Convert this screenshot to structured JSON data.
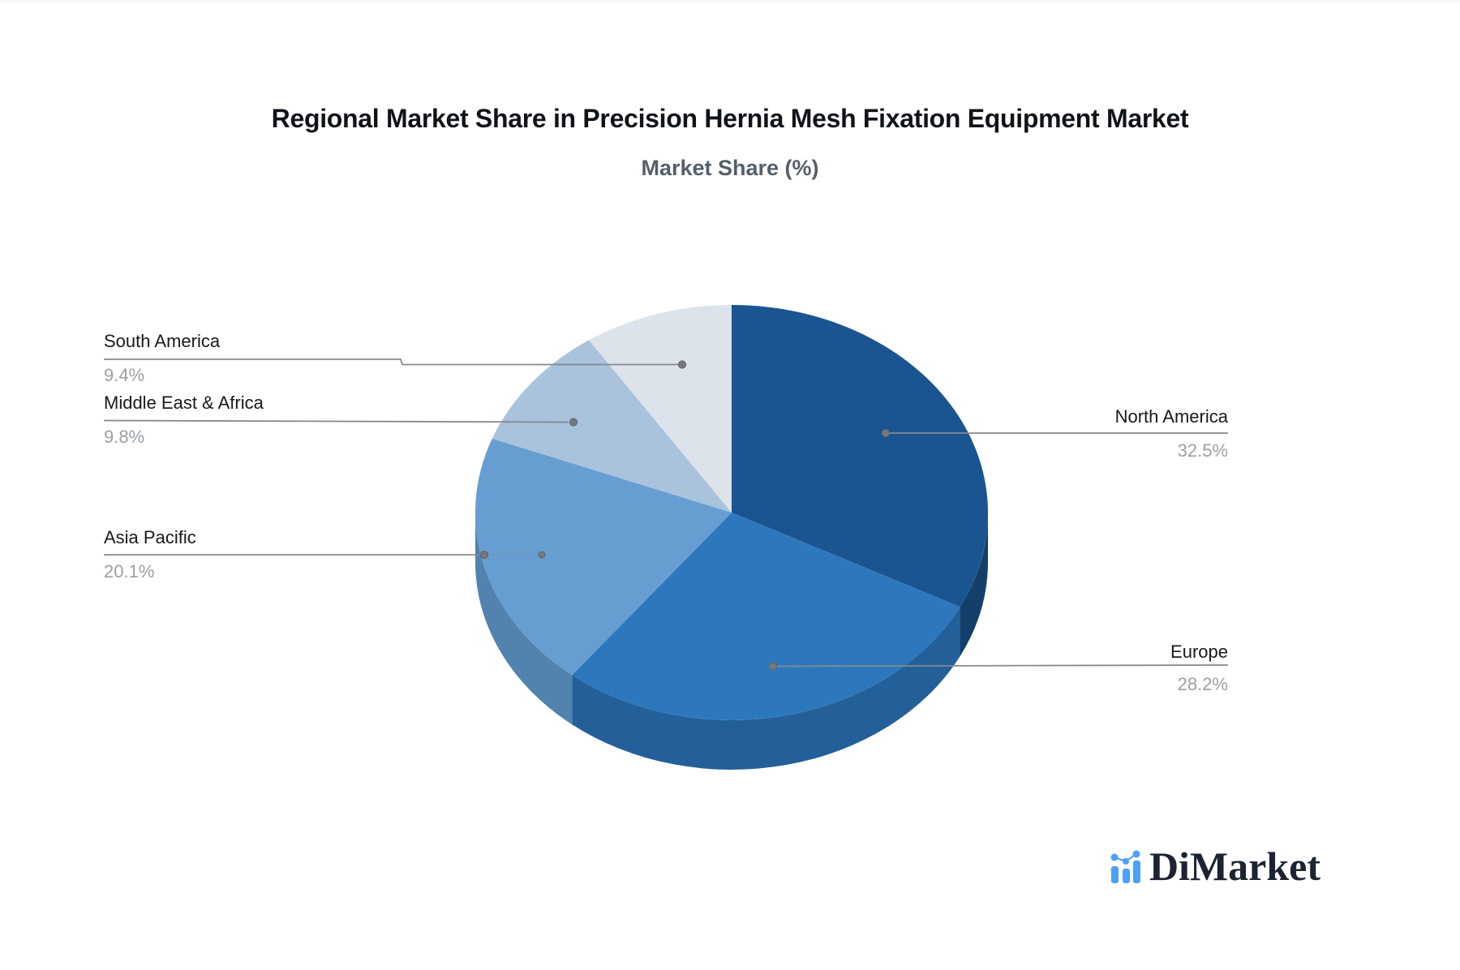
{
  "chart_data": {
    "type": "pie",
    "style": "3d",
    "title": "Regional Market Share in Precision Hernia Mesh Fixation Equipment Market",
    "subtitle": "Market Share (%)",
    "unit": "%",
    "start_angle_deg": 0,
    "direction": "clockwise",
    "slices": [
      {
        "label": "North America",
        "value": 32.5,
        "display": "32.5%",
        "color": "#1a5591",
        "side_color": "#143f69"
      },
      {
        "label": "Europe",
        "value": 28.2,
        "display": "28.2%",
        "color": "#2d78bd",
        "side_color": "#23609a"
      },
      {
        "label": "Asia Pacific",
        "value": 20.1,
        "display": "20.1%",
        "color": "#679ed2",
        "side_color": "#5282ae"
      },
      {
        "label": "Middle East & Africa",
        "value": 9.8,
        "display": "9.8%",
        "color": "#a9c3dd",
        "side_color": "#8aa6c2"
      },
      {
        "label": "South America",
        "value": 9.4,
        "display": "9.4%",
        "color": "#dde3eb",
        "side_color": "#bcc4cf"
      }
    ],
    "legend_position": "none",
    "labels_style": "callout-lines"
  },
  "colors": {
    "leader_line": "#85898d",
    "leader_dot": "#75797d",
    "title_text": "#101418",
    "subtitle_text": "#535f6a",
    "label_text": "#16191d",
    "percent_text": "#9aa0a5"
  },
  "branding": {
    "logo_text": "DiMarket",
    "logo_color": "#1c2433",
    "icon_color": "#4ba1f5"
  }
}
